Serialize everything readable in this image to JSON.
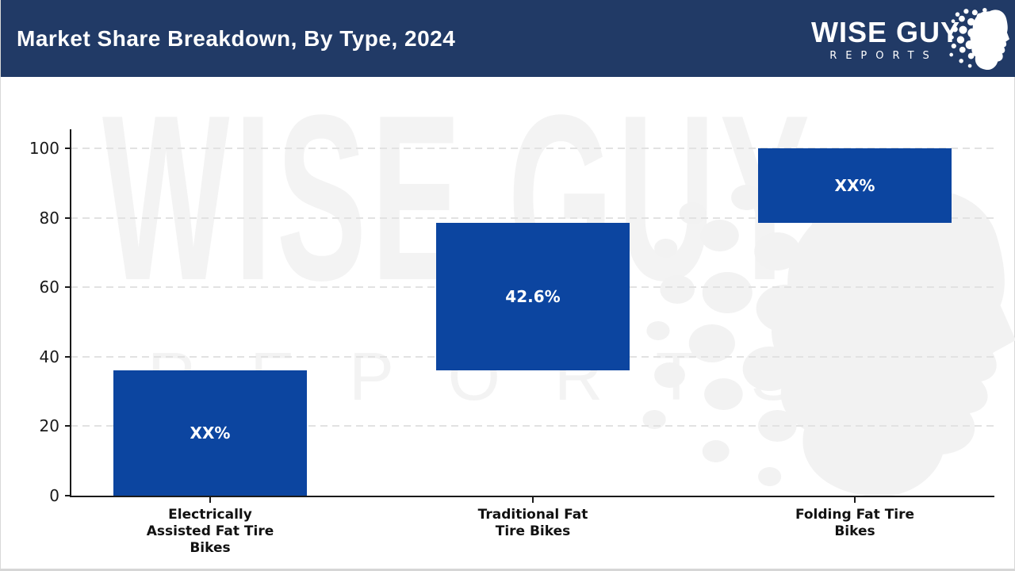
{
  "header": {
    "title": "Market Share Breakdown, By Type, 2024",
    "bg_color": "#213a66",
    "logo": {
      "line1": "WISE GUY",
      "line2": "REPORTS"
    }
  },
  "watermark": {
    "line1": "WISE GUY",
    "line2": "REPORTS"
  },
  "chart_data": {
    "type": "bar",
    "subtype": "waterfall-floating-bars",
    "title": "Market Share Breakdown, By Type, 2024",
    "categories": [
      "Electrically Assisted Fat Tire Bikes",
      "Traditional Fat Tire Bikes",
      "Folding Fat Tire Bikes"
    ],
    "category_lines": [
      [
        "Electrically",
        "Assisted Fat Tire",
        "Bikes"
      ],
      [
        "Traditional Fat",
        "Tire Bikes"
      ],
      [
        "Folding Fat Tire",
        "Bikes"
      ]
    ],
    "bars": [
      {
        "start": 0,
        "end": 36,
        "label": "XX%"
      },
      {
        "start": 36,
        "end": 78.6,
        "label": "42.6%"
      },
      {
        "start": 78.6,
        "end": 100,
        "label": "XX%"
      }
    ],
    "ylim": [
      0,
      100
    ],
    "yticks": [
      0,
      20,
      40,
      60,
      80,
      100
    ],
    "xlabel": "",
    "ylabel": "",
    "grid": {
      "axis": "y",
      "style": "dashed",
      "color": "#e2e2e2"
    },
    "legend": "none",
    "bar_color": "#0c45a0",
    "value_label_color": "#ffffff",
    "axis_color": "#1a1a1a"
  }
}
